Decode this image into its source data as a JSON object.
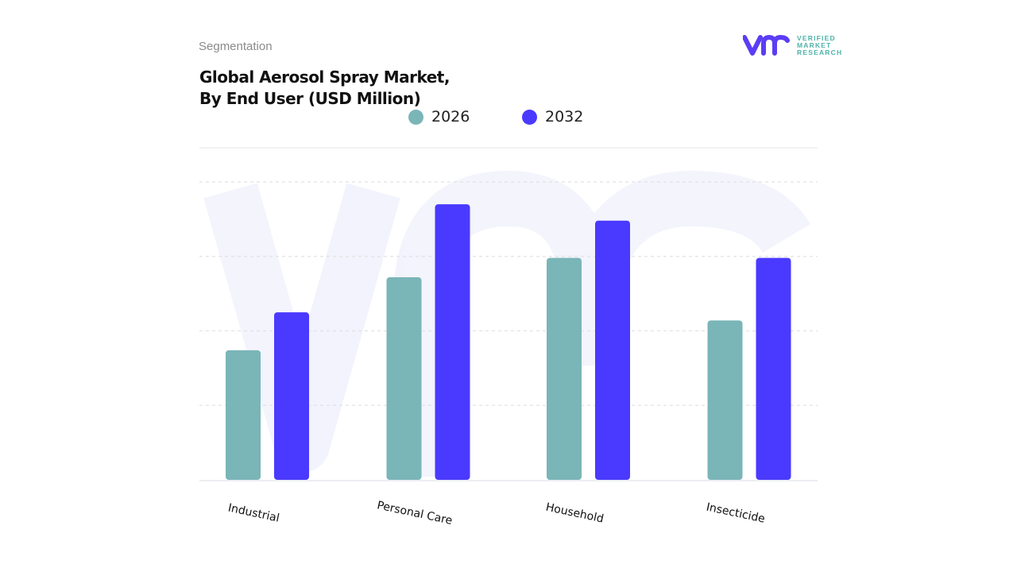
{
  "header": {
    "section": "Segmentation",
    "title_line1": "Global Aerosol Spray Market,",
    "title_line2": "By End User (USD Million)"
  },
  "logo": {
    "line1": "VERIFIED",
    "line2": "MARKET",
    "line3": "RESEARCH",
    "mark": "vmr"
  },
  "colors": {
    "s2026": "#7ab5b8",
    "s2032": "#4a3aff",
    "logo_purple": "#5b3df5",
    "logo_teal": "#4fb3a9"
  },
  "chart_data": {
    "type": "bar",
    "title": "Global Aerosol Spray Market, By End User (USD Million)",
    "categories": [
      "Industrial",
      "Personal Care",
      "Household",
      "Insecticide"
    ],
    "series": [
      {
        "name": "2026",
        "values": [
          1.74,
          2.72,
          2.98,
          2.14
        ]
      },
      {
        "name": "2032",
        "values": [
          2.25,
          3.7,
          3.48,
          2.98
        ]
      }
    ],
    "ylim": [
      0,
      4
    ],
    "yticks_shown": false,
    "grid": true,
    "legend": "top-center",
    "xlabel": "",
    "ylabel": ""
  }
}
